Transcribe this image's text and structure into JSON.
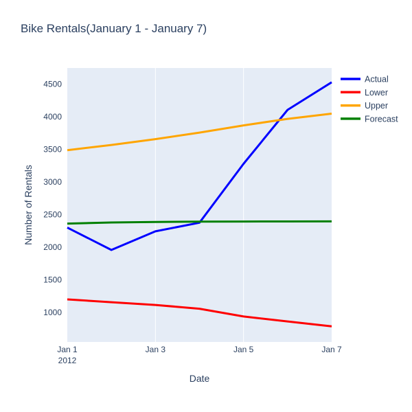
{
  "title": "Bike Rentals(January 1 - January 7)",
  "colors": {
    "background": "#ffffff",
    "plot_background": "#e5ecf6",
    "grid": "#ffffff",
    "text": "#2a3f5f"
  },
  "chart_data": {
    "type": "line",
    "title": "Bike Rentals(January 1 - January 7)",
    "xlabel": "Date",
    "ylabel": "Number of Rentals",
    "x": [
      "Jan 1",
      "Jan 2",
      "Jan 3",
      "Jan 4",
      "Jan 5",
      "Jan 6",
      "Jan 7"
    ],
    "series": [
      {
        "name": "Actual",
        "color": "#0000ff",
        "values": [
          2294,
          1951,
          2236,
          2368,
          3272,
          4098,
          4521
        ]
      },
      {
        "name": "Lower",
        "color": "#ff0000",
        "values": [
          1193,
          1150,
          1107,
          1050,
          930,
          855,
          780
        ]
      },
      {
        "name": "Upper",
        "color": "#ffa500",
        "values": [
          3480,
          3560,
          3650,
          3750,
          3860,
          3960,
          4040
        ]
      },
      {
        "name": "Forecast",
        "color": "#008000",
        "values": [
          2355,
          2372,
          2380,
          2384,
          2386,
          2387,
          2388
        ]
      }
    ],
    "ylim": [
      540,
      4740
    ],
    "yticks": [
      1000,
      1500,
      2000,
      2500,
      3000,
      3500,
      4000,
      4500
    ],
    "xticks": [
      {
        "pos": 0,
        "label": "Jan 1",
        "sublabel": "2012"
      },
      {
        "pos": 2,
        "label": "Jan 3"
      },
      {
        "pos": 4,
        "label": "Jan 5"
      },
      {
        "pos": 6,
        "label": "Jan 7"
      }
    ],
    "grid": {
      "x": true,
      "y": false
    },
    "legend_position": "outside-top-right",
    "line_width": 3
  }
}
